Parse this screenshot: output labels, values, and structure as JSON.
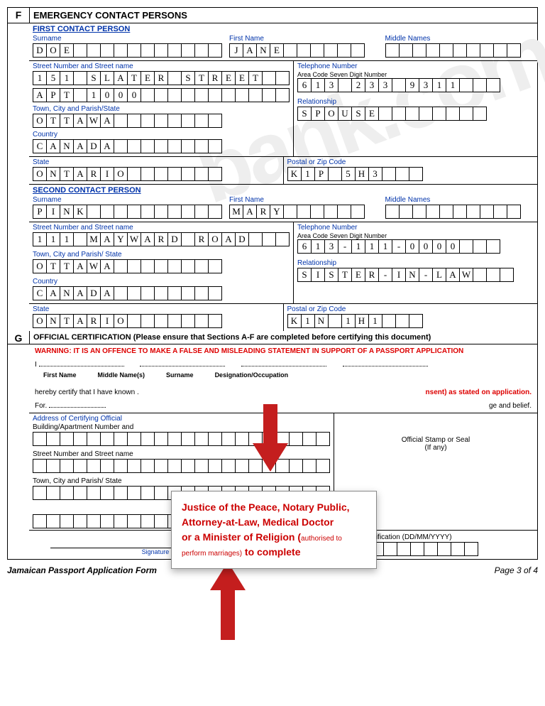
{
  "watermark": "bank.com",
  "sections": {
    "F": {
      "letter": "F",
      "title": "EMERGENCY CONTACT PERSONS",
      "first": {
        "header": "FIRST CONTACT PERSON",
        "surname_label": "Surname",
        "surname": "DOE",
        "firstname_label": "First Name",
        "firstname": "JANE",
        "middle_label": "Middle Names",
        "middle": "",
        "street_label": "Street Number and Street name",
        "street1": "151 SLATER STREET",
        "street2": "APT 1000",
        "tel_label": "Telephone Number",
        "tel_sub": "Area Code   Seven Digit Number",
        "tel": "613 233 9311",
        "town_label": "Town, City and Parish/State",
        "town": "OTTAWA",
        "rel_label": "Relationship",
        "rel": "SPOUSE",
        "country_label": "Country",
        "country": "CANADA",
        "state_label": "State",
        "state": "ONTARIO",
        "postal_label": "Postal or Zip Code",
        "postal": "K1P 5H3"
      },
      "second": {
        "header": "SECOND CONTACT PERSON",
        "surname_label": "Surname",
        "surname": "PINK",
        "firstname_label": "First Name",
        "firstname": "MARY",
        "middle_label": "Middle Names",
        "middle": "",
        "street_label": "Street Number and Street name",
        "street": "111 MAYWARD ROAD",
        "tel_label": "Telephone Number",
        "tel_sub": "Area Code   Seven Digit Number",
        "tel": "613-111-0000",
        "town_label": "Town, City and Parish/ State",
        "town": "OTTAWA",
        "rel_label": "Relationship",
        "rel": "SISTER-IN-LAW",
        "country_label": "Country",
        "country": "CANADA",
        "state_label": "State",
        "state": "ONTARIO",
        "postal_label": "Postal or Zip Code",
        "postal": "K1N 1H1"
      }
    },
    "G": {
      "letter": "G",
      "title": "OFFICIAL CERTIFICATION (Please ensure that Sections A-F are completed before certifying this document)",
      "warning": "WARNING: IT IS AN OFFENCE TO MAKE A FALSE AND MISLEADING STATEMENT IN SUPPORT OF A PASSPORT APPLICATION",
      "line_I": "I",
      "labels": {
        "first": "First Name",
        "middle": "Middle Name(s)",
        "surname": "Surname",
        "designation": "Designation/Occupation"
      },
      "certify": "hereby certify that I have known .",
      "consent_frag": "nsent) as stated on application.",
      "for_line": "For.",
      "belief_frag": "ge and belief.",
      "addr_label": "Address of Certifying Official",
      "building_label": "Building/Apartment Number and",
      "street_label": "Street Number and Street name",
      "town_label": "Town, City and Parish/ State",
      "stamp": "Official Stamp or Seal",
      "stamp2": "(If any)",
      "date_label": "ate of Certification (DD/MM/YYYY)",
      "sig_label": "Signature of Certifying Official"
    }
  },
  "callout": {
    "line1": "Justice of the Peace, Notary Public,",
    "line2": "Attorney-at-Law, Medical Doctor",
    "line3": "or a Minister of Religion (",
    "line3_small": "authorised to perform marriages)",
    "line4": " to complete"
  },
  "footer": {
    "left": "Jamaican Passport Application Form",
    "right": "Page 3 of  4"
  },
  "colors": {
    "blue": "#0033aa",
    "red": "#d00000",
    "arrow": "#c41e1e"
  }
}
